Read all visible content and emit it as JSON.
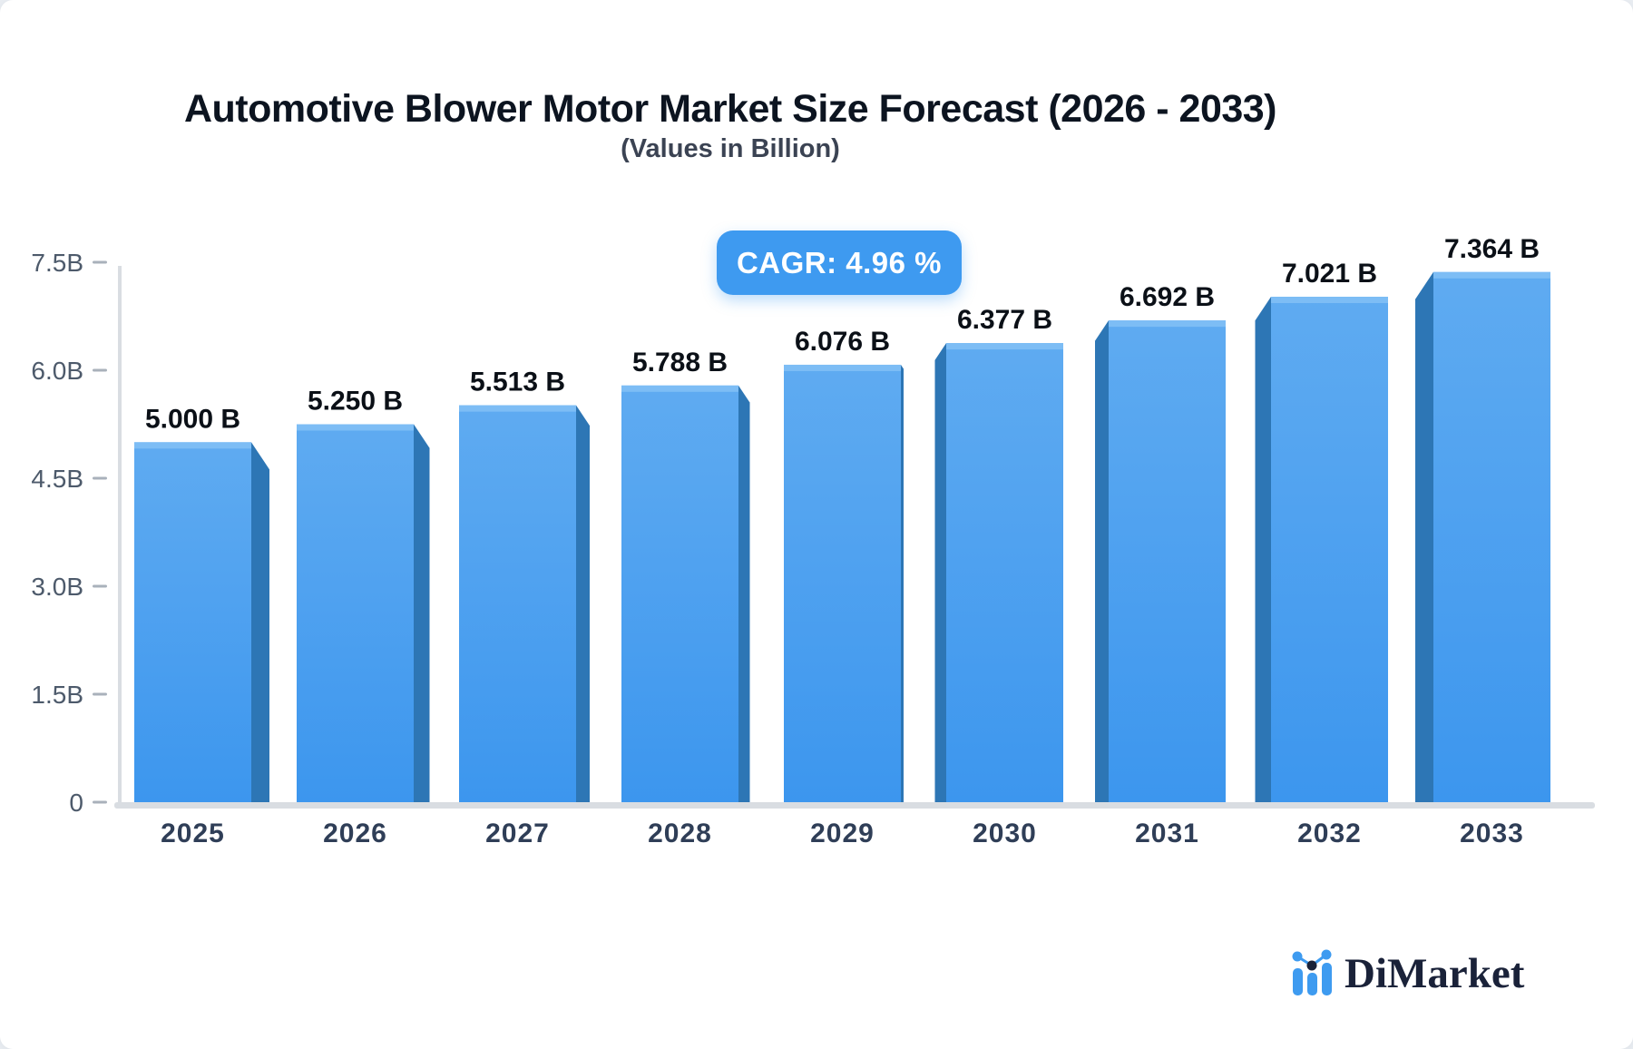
{
  "header": {
    "title": "Automotive Blower Motor Market Size Forecast (2026 - 2033)",
    "subtitle": "(Values in Billion)"
  },
  "badge": {
    "label": "CAGR: 4.96 %",
    "bg": "#3E9AF0"
  },
  "brand": {
    "name": "DiMarket",
    "navy": "#1A2239",
    "blue": "#3E9BF0"
  },
  "chart_data": {
    "type": "bar",
    "title": "Automotive Blower Motor Market Size Forecast (2026 - 2033)",
    "subtitle": "(Values in Billion)",
    "categories": [
      "2025",
      "2026",
      "2027",
      "2028",
      "2029",
      "2030",
      "2031",
      "2032",
      "2033"
    ],
    "values": [
      5.0,
      5.25,
      5.513,
      5.788,
      6.076,
      6.377,
      6.692,
      7.021,
      7.364
    ],
    "value_labels": [
      "5.000 B",
      "5.250 B",
      "5.513 B",
      "5.788 B",
      "6.076 B",
      "6.377 B",
      "6.692 B",
      "7.021 B",
      "7.364 B"
    ],
    "xlabel": "",
    "ylabel": "",
    "ylim": [
      0,
      7.5
    ],
    "yticks": [
      {
        "v": 0,
        "label": "0"
      },
      {
        "v": 1.5,
        "label": "1.5B"
      },
      {
        "v": 3.0,
        "label": "3.0B"
      },
      {
        "v": 4.5,
        "label": "4.5B"
      },
      {
        "v": 6.0,
        "label": "6.0B"
      },
      {
        "v": 7.5,
        "label": "7.5B"
      }
    ],
    "grid": false,
    "legend": "none",
    "style": "3d-perspective-toward-center",
    "colors": {
      "bar_top": "#5FABF1",
      "bar_bottom": "#3C96EE",
      "bar_highlight": "#7DBDF5",
      "bar_side": "#2D76B5",
      "axis": "#D9DDE2",
      "tick": "#A9B1BB",
      "y_label": "#4D5A6B",
      "x_label": "#2F3E57",
      "value_label": "#0B1017"
    }
  }
}
